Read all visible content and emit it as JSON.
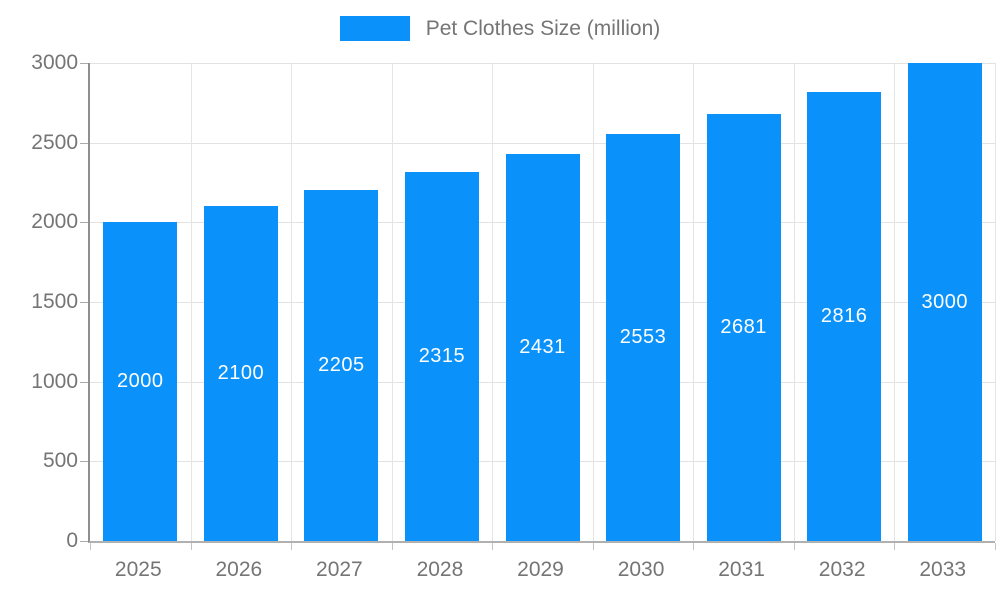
{
  "chart_data": {
    "type": "bar",
    "title": "",
    "legend": "Pet Clothes Size (million)",
    "legend_position": "top",
    "categories": [
      "2025",
      "2026",
      "2027",
      "2028",
      "2029",
      "2030",
      "2031",
      "2032",
      "2033"
    ],
    "series": [
      {
        "name": "Pet Clothes Size (million)",
        "values": [
          2000,
          2100,
          2205,
          2315,
          2431,
          2553,
          2681,
          2816,
          3000
        ]
      }
    ],
    "xlabel": "",
    "ylabel": "",
    "ylim": [
      0,
      3000
    ],
    "yticks": [
      0,
      500,
      1000,
      1500,
      2000,
      2500,
      3000
    ],
    "grid": true,
    "colors": {
      "bar": "#0a91fa",
      "value_label": "#ffffff",
      "axis_text": "#757575",
      "gridline": "#e2e2e2"
    }
  }
}
